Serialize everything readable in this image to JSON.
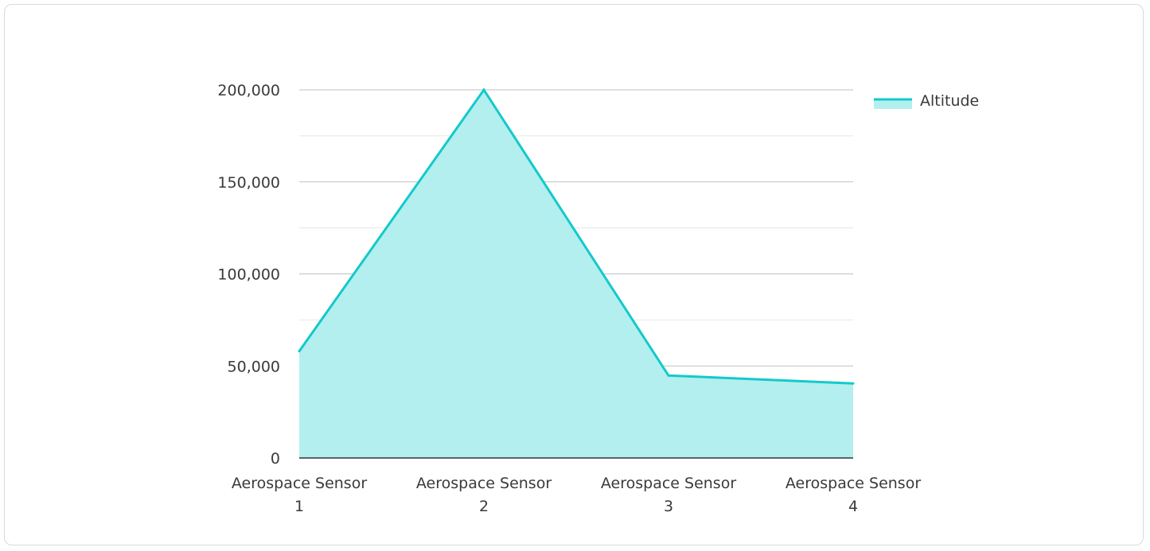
{
  "chart_data": {
    "type": "area",
    "categories": [
      [
        "Aerospace Sensor",
        "1"
      ],
      [
        "Aerospace Sensor",
        "2"
      ],
      [
        "Aerospace Sensor",
        "3"
      ],
      [
        "Aerospace Sensor",
        "4"
      ]
    ],
    "series": [
      {
        "name": "Altitude",
        "values": [
          58000,
          200000,
          44800,
          40500
        ]
      }
    ],
    "ylim": [
      0,
      200000
    ],
    "yticks": [
      0,
      50000,
      100000,
      150000,
      200000
    ],
    "ytick_labels": [
      "0",
      "50,000",
      "100,000",
      "150,000",
      "200,000"
    ],
    "minor_gridlines": true,
    "legend_position": "top-right",
    "colors": {
      "line": "#14c9cb",
      "fill": "#b2efee",
      "grid_major": "#c0c0c0",
      "grid_minor": "#e6e6e6",
      "axis": "#333333"
    }
  }
}
